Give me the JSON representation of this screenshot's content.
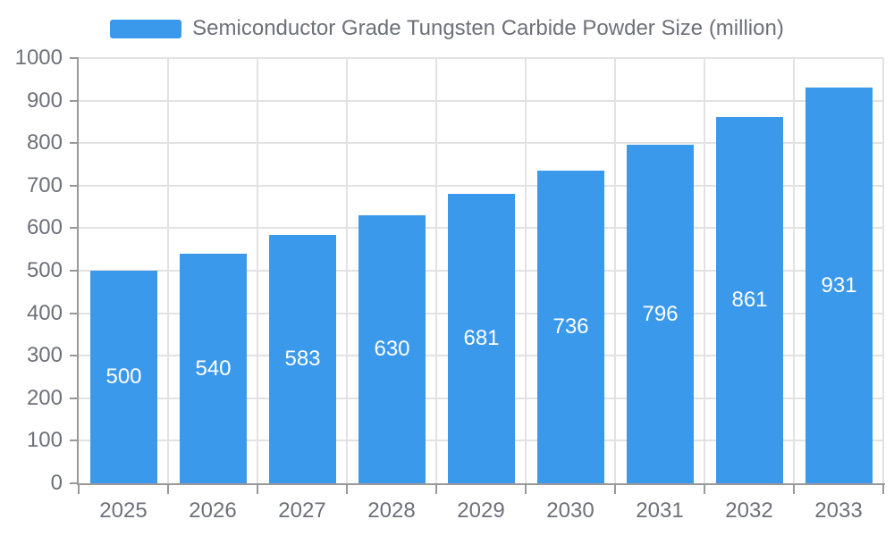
{
  "chart_data": {
    "type": "bar",
    "title": "Semiconductor Grade Tungsten Carbide Powder Size (million)",
    "categories": [
      "2025",
      "2026",
      "2027",
      "2028",
      "2029",
      "2030",
      "2031",
      "2032",
      "2033"
    ],
    "values": [
      500,
      540,
      583,
      630,
      681,
      736,
      796,
      861,
      931
    ],
    "series": [
      {
        "name": "Semiconductor Grade Tungsten Carbide Powder Size (million)",
        "values": [
          500,
          540,
          583,
          630,
          681,
          736,
          796,
          861,
          931
        ]
      }
    ],
    "xlabel": "",
    "ylabel": "",
    "ylim": [
      0,
      1000
    ],
    "ytick_step": 100,
    "ytick_labels": [
      "0",
      "100",
      "200",
      "300",
      "400",
      "500",
      "600",
      "700",
      "800",
      "900",
      "1000"
    ],
    "grid": "on",
    "value_labels_position": "inside-center",
    "legend": {
      "position": "top-center",
      "label": "Semiconductor Grade Tungsten Carbide Powder Size (million)"
    },
    "colors": {
      "bar": "#3B99EC",
      "axis": "#999999",
      "grid": "#E2E2E2",
      "text": "#6E7079",
      "value_label": "#FFFFFF",
      "background": "#FFFFFF"
    }
  }
}
